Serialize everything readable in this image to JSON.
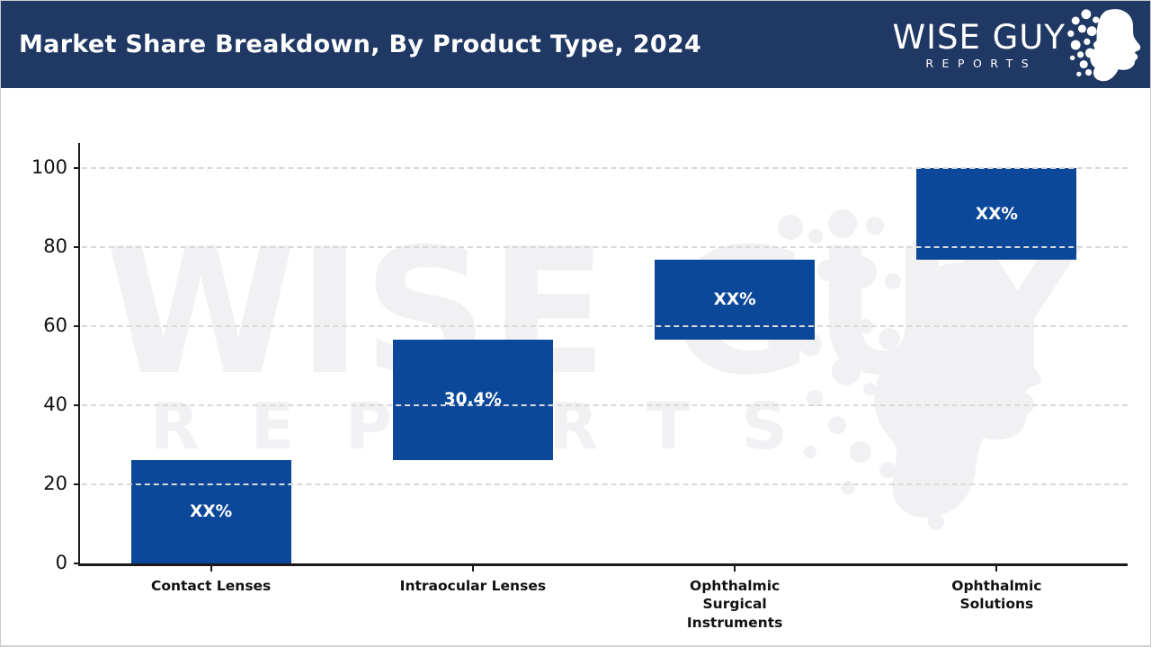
{
  "header": {
    "title": "Market Share Breakdown, By Product Type, 2024",
    "background_color": "#1f3864",
    "logo": {
      "line1": "WISE GUY",
      "line2": "REPORTS"
    }
  },
  "watermark": {
    "line1": "WISE GUY",
    "line2": "REPORTS"
  },
  "chart_data": {
    "type": "bar",
    "subtype": "waterfall-floating-bars",
    "title": "Market Share Breakdown, By Product Type, 2024",
    "categories": [
      "Contact Lenses",
      "Intraocular Lenses",
      "Ophthalmic Surgical Instruments",
      "Ophthalmic Solutions"
    ],
    "category_display_lines": [
      [
        "Contact Lenses"
      ],
      [
        "Intraocular Lenses"
      ],
      [
        "Ophthalmic",
        "Surgical",
        "Instruments"
      ],
      [
        "Ophthalmic",
        "Solutions"
      ]
    ],
    "segments": [
      {
        "category": "Contact Lenses",
        "start": 0,
        "end": 26.2,
        "label": "XX%"
      },
      {
        "category": "Intraocular Lenses",
        "start": 26.2,
        "end": 56.6,
        "label": "30.4%"
      },
      {
        "category": "Ophthalmic Surgical Instruments",
        "start": 56.6,
        "end": 76.8,
        "label": "XX%"
      },
      {
        "category": "Ophthalmic Solutions",
        "start": 76.8,
        "end": 100,
        "label": "XX%"
      }
    ],
    "yticks": [
      0,
      20,
      40,
      60,
      80,
      100
    ],
    "ylim": [
      0,
      106
    ],
    "xlabel": "",
    "ylabel": "",
    "grid": true,
    "gridline_style": "dashed",
    "legend": null,
    "bar_color": "#0b4899",
    "bar_label_color": "#ffffff",
    "axis_color": "#1a1a1a",
    "tick_label_color": "#111111",
    "gridline_color": "#d9d9d9"
  }
}
